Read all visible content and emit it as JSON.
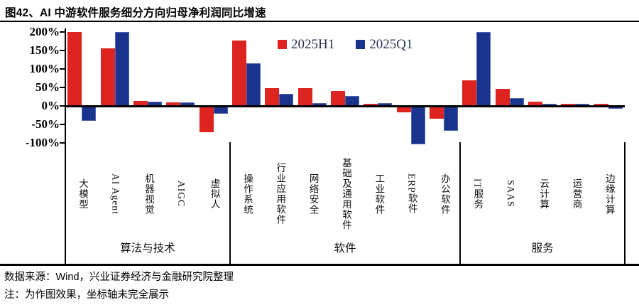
{
  "header": {
    "title": "图42、AI 中游软件服务细分方向归母净利润同比增速"
  },
  "footer": {
    "source": "数据来源：Wind，兴业证券经济与金融研究院整理",
    "note": "注：为作图效果，坐标轴未完全展示"
  },
  "chart_data": {
    "type": "bar",
    "title": "AI 中游软件服务细分方向归母净利润同比增速",
    "unit": "%",
    "grid": false,
    "legend": {
      "position": "top-inside"
    },
    "series": [
      {
        "key": "h1",
        "name": "2025H1",
        "color": "#DD2420"
      },
      {
        "key": "q1",
        "name": "2025Q1",
        "color": "#1A338C"
      }
    ],
    "y_axis": {
      "min": -100,
      "max": 200,
      "tick_step": 50,
      "tick_labels": [
        "200%",
        "150%",
        "100%",
        "50%",
        "0%",
        "-50%",
        "-100%"
      ],
      "truncated_note": "坐标轴未完全展示"
    },
    "groups": [
      {
        "label": "算法与技术",
        "categories": [
          {
            "name": "大模型",
            "h1": 200,
            "q1": -40,
            "h1_clipped": true
          },
          {
            "name": "AI Agent",
            "h1": 155,
            "q1": 200,
            "q1_clipped": true
          },
          {
            "name": "机器视觉",
            "h1": 14,
            "q1": 11
          },
          {
            "name": "AIGC",
            "h1": 9,
            "q1": 10
          },
          {
            "name": "虚拟人",
            "h1": -72,
            "q1": -22
          }
        ]
      },
      {
        "label": "软件",
        "categories": [
          {
            "name": "操作系统",
            "h1": 177,
            "q1": 115
          },
          {
            "name": "行业应用软件",
            "h1": 48,
            "q1": 33
          },
          {
            "name": "网络安全",
            "h1": 48,
            "q1": 7
          },
          {
            "name": "基础及通用软件",
            "h1": 41,
            "q1": 27
          },
          {
            "name": "工业软件",
            "h1": 1,
            "q1": 7
          },
          {
            "name": "ERP软件",
            "h1": -18,
            "q1": -103
          },
          {
            "name": "办公软件",
            "h1": -35,
            "q1": -68
          }
        ]
      },
      {
        "label": "服务",
        "categories": [
          {
            "name": "IT服务",
            "h1": 70,
            "q1": 200,
            "q1_clipped": true
          },
          {
            "name": "SAAS",
            "h1": 47,
            "q1": 22
          },
          {
            "name": "云计算",
            "h1": 11,
            "q1": 6
          },
          {
            "name": "运营商",
            "h1": 5,
            "q1": 2
          },
          {
            "name": "边缘计算",
            "h1": 1,
            "q1": -4
          }
        ]
      }
    ]
  }
}
